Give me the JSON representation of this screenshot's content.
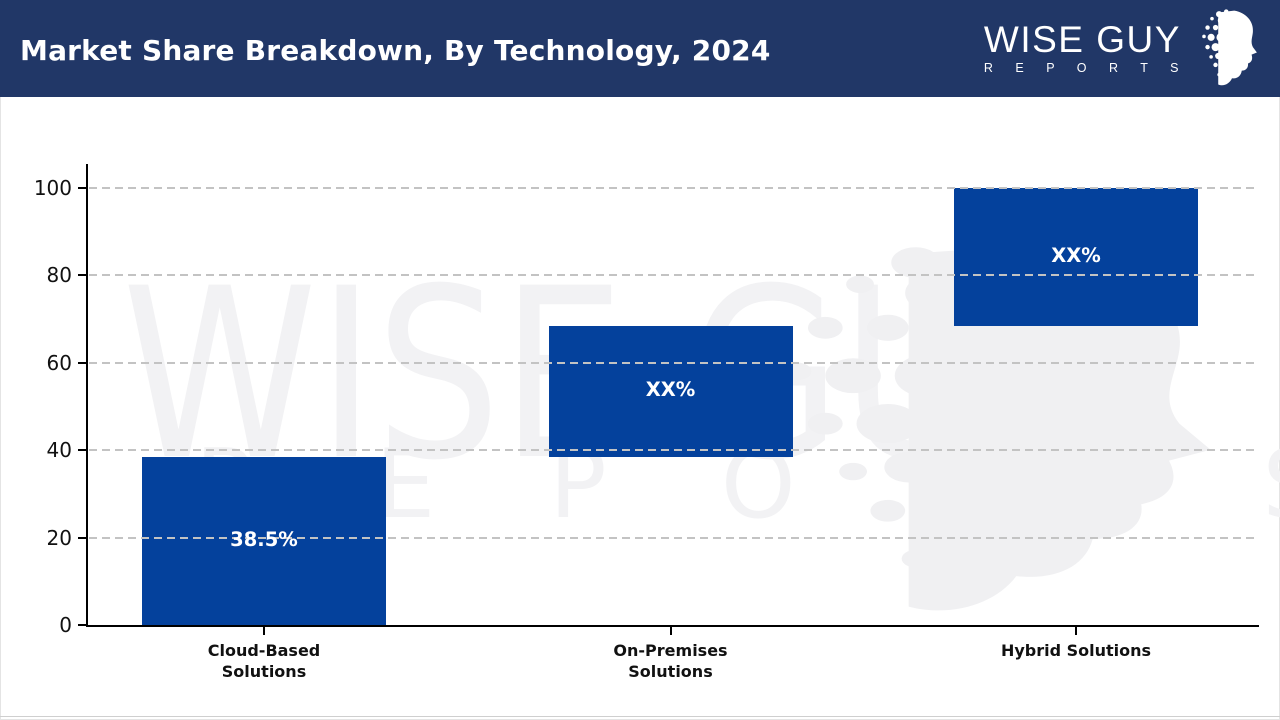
{
  "header": {
    "title": "Market Share Breakdown, By Technology, 2024"
  },
  "logo": {
    "line1": "WISE GUY",
    "line2": "R E P O R T S"
  },
  "watermark": {
    "line1": "WISE GUY",
    "line2": "R E P O R T S"
  },
  "colors": {
    "header_bg": "#213767",
    "bar": "#04419c",
    "axis": "#000000",
    "grid": "#c3c3c3",
    "watermark": "#f2f2f4",
    "bar_label_text": "#ffffff",
    "title_text": "#ffffff"
  },
  "chart_data": {
    "type": "bar",
    "subtype": "waterfall",
    "title": "Market Share Breakdown, By Technology, 2024",
    "categories": [
      "Cloud-Based Solutions",
      "On-Premises Solutions",
      "Hybrid Solutions"
    ],
    "bars": [
      {
        "category_lines": [
          "Cloud-Based",
          "Solutions"
        ],
        "start": 0,
        "end": 38.5,
        "label": "38.5%"
      },
      {
        "category_lines": [
          "On-Premises",
          "Solutions"
        ],
        "start": 38.5,
        "end": 68.5,
        "label": "XX%"
      },
      {
        "category_lines": [
          "Hybrid Solutions"
        ],
        "start": 68.5,
        "end": 100,
        "label": "XX%"
      }
    ],
    "ylim": [
      0,
      100
    ],
    "yticks": [
      0,
      20,
      40,
      60,
      80,
      100
    ],
    "grid": true,
    "grid_style": "dashed",
    "legend": null,
    "xlabel": "",
    "ylabel": ""
  }
}
